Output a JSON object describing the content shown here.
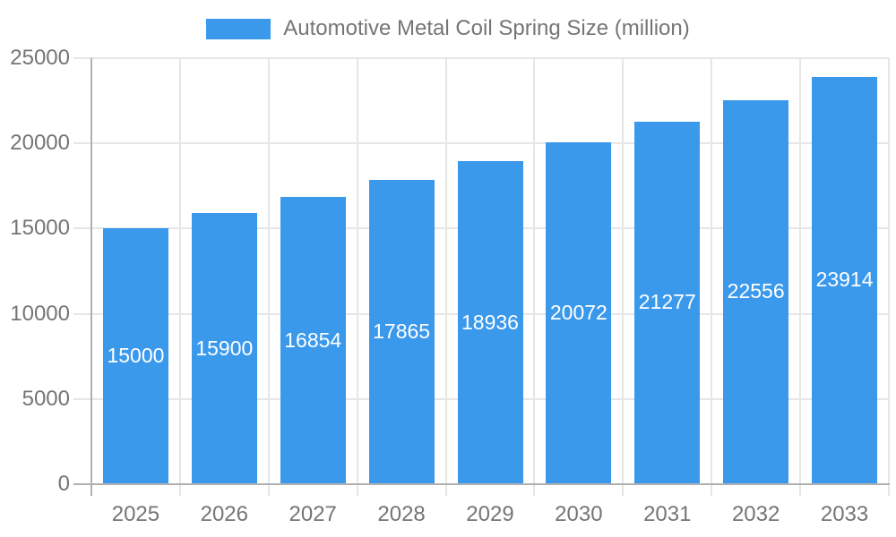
{
  "chart_data": {
    "type": "bar",
    "title": "Automotive Metal Coil Spring Size (million)",
    "legend_position": "top",
    "categories": [
      "2025",
      "2026",
      "2027",
      "2028",
      "2029",
      "2030",
      "2031",
      "2032",
      "2033"
    ],
    "series": [
      {
        "name": "Automotive Metal Coil Spring Size (million)",
        "values": [
          15000,
          15900,
          16854,
          17865,
          18936,
          20072,
          21277,
          22556,
          23914
        ]
      }
    ],
    "xlabel": "",
    "ylabel": "",
    "ylim": [
      0,
      25000
    ],
    "yticks": [
      0,
      5000,
      10000,
      15000,
      20000,
      25000
    ],
    "grid": true,
    "value_labels_shown": true,
    "colors": {
      "bar": "#3b99ec",
      "value_label": "#ffffff",
      "axis_text": "#757575",
      "grid_line": "#e6e6e6",
      "axis_line": "#b0b0b0",
      "background": "#ffffff"
    }
  }
}
